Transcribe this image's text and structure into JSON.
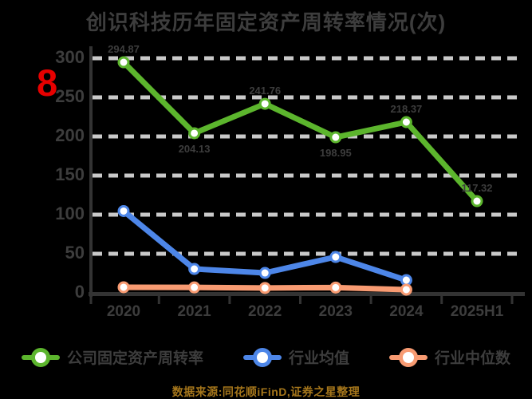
{
  "title": "创识科技历年固定资产周转率情况(次)",
  "watermark": "8",
  "footer": "数据来源:同花顺iFinD,证券之星整理",
  "legend": [
    {
      "label": "公司固定资产周转率",
      "color": "#5cb52d"
    },
    {
      "label": "行业均值",
      "color": "#4d86e8"
    },
    {
      "label": "行业中位数",
      "color": "#f89b72"
    }
  ],
  "colors": {
    "background": "#000000",
    "axis": "#333333",
    "grid": "#c9c9c9",
    "text": "#3d3d3d",
    "footer_text": "#a5761b",
    "watermark_red": "#e60000",
    "marker_fill": "#ffffff"
  },
  "chart_data": {
    "type": "line",
    "categories": [
      "2020",
      "2021",
      "2022",
      "2023",
      "2024",
      "2025H1"
    ],
    "series": [
      {
        "name": "公司固定资产周转率",
        "color": "#5cb52d",
        "values": [
          294.87,
          204.13,
          241.76,
          198.95,
          218.37,
          117.32
        ],
        "point_labels": [
          "294.87",
          "204.13",
          "241.76",
          "198.95",
          "218.37",
          "117.32"
        ],
        "label_side": [
          "above",
          "below",
          "above",
          "below",
          "above",
          "above"
        ]
      },
      {
        "name": "行业均值",
        "color": "#4d86e8",
        "values": [
          104.6,
          30.6,
          25.5,
          45.9,
          16.3,
          null
        ],
        "point_labels": [],
        "label_side": []
      },
      {
        "name": "行业中位数",
        "color": "#f89b72",
        "values": [
          7.2,
          7.0,
          6.3,
          6.8,
          4.1,
          null
        ],
        "point_labels": [],
        "label_side": []
      }
    ],
    "ylim": [
      0,
      300
    ],
    "yticks": [
      0,
      50,
      100,
      150,
      200,
      250,
      300
    ],
    "grid": "horizontal-dashed",
    "legend_position": "bottom"
  }
}
